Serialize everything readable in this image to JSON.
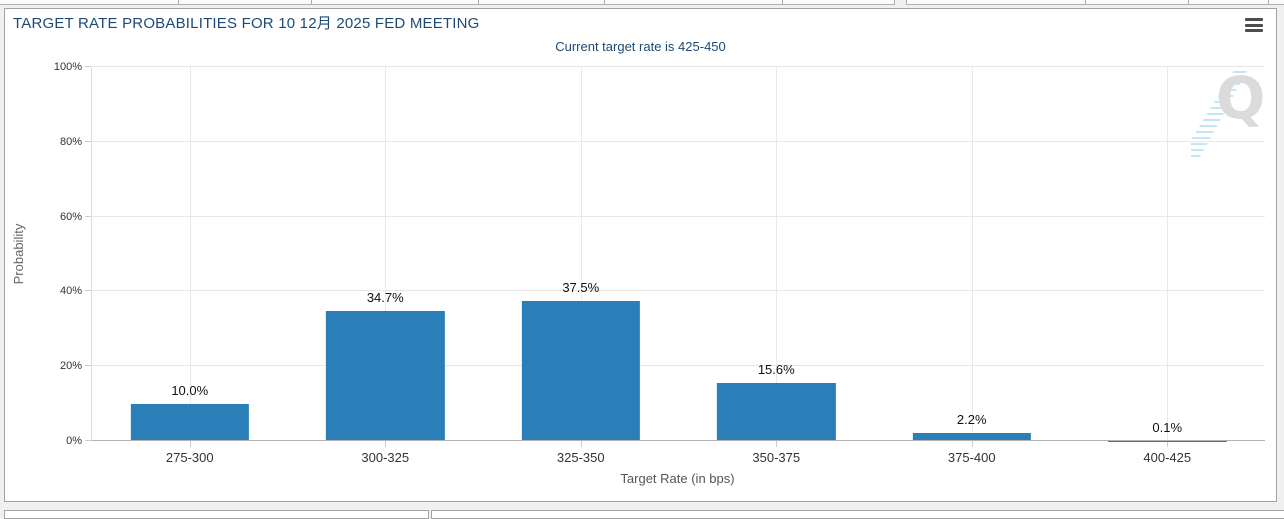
{
  "panel": {
    "title": "TARGET RATE PROBABILITIES FOR 10 12月 2025 FED MEETING",
    "subtitle": "Current target rate is 425-450",
    "watermark_letter": "Q",
    "menu_icon": "hamburger-icon"
  },
  "chart_data": {
    "type": "bar",
    "title": "TARGET RATE PROBABILITIES FOR 10 12月 2025 FED MEETING",
    "subtitle": "Current target rate is 425-450",
    "categories": [
      "275-300",
      "300-325",
      "325-350",
      "350-375",
      "375-400",
      "400-425"
    ],
    "values": [
      10.0,
      34.7,
      37.5,
      15.6,
      2.2,
      0.1
    ],
    "value_labels": [
      "10.0%",
      "34.7%",
      "37.5%",
      "15.6%",
      "2.2%",
      "0.1%"
    ],
    "xlabel": "Target Rate (in bps)",
    "ylabel": "Probability",
    "ylim": [
      0,
      100
    ],
    "yticks_percent": [
      0,
      20,
      40,
      60,
      80,
      100
    ],
    "ytick_labels": [
      "0%",
      "20%",
      "40%",
      "60%",
      "80%",
      "100%"
    ],
    "grid": true,
    "legend": "none",
    "bar_color": "#2b7fb8"
  },
  "colors": {
    "bar": "#2b7fb8",
    "title_text": "#1c4a74",
    "gridline": "#e7e7e7",
    "axis_line": "#b3b3b3",
    "panel_background": "#ffffff",
    "page_background": "#f0f0f0",
    "watermark_gray": "#dbdbdb",
    "watermark_blue": "#c3e6f5"
  }
}
